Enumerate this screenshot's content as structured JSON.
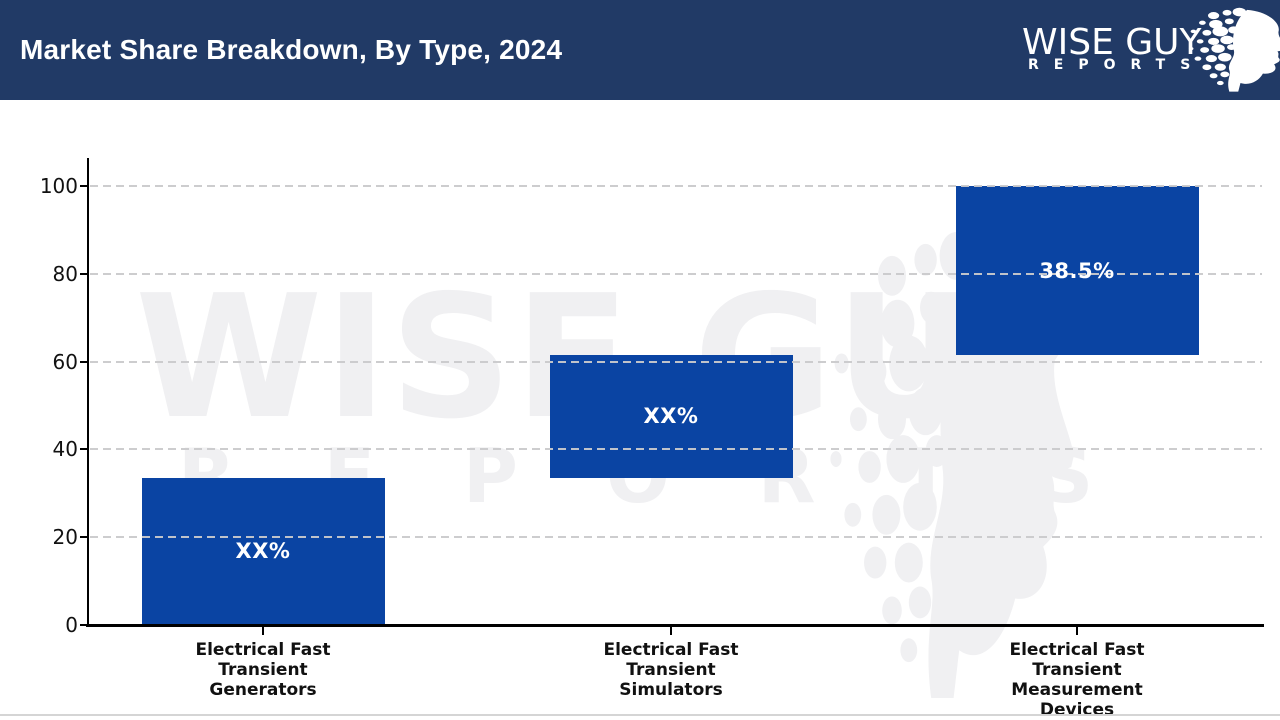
{
  "header": {
    "title": "Market Share Breakdown, By Type, 2024",
    "logo": {
      "wordmark": "WISE GUY",
      "subtext": "REPORTS"
    }
  },
  "watermark": {
    "wordmark": "WISE GUY",
    "subtext": "REPORTS"
  },
  "chart_data": {
    "type": "bar",
    "variant": "floating-segment-breakdown",
    "title": "Market Share Breakdown, By Type, 2024",
    "categories": [
      {
        "name": "Electrical Fast Transient Generators",
        "lines": [
          "Electrical Fast",
          "Transient",
          "Generators"
        ]
      },
      {
        "name": "Electrical Fast Transient Simulators",
        "lines": [
          "Electrical Fast",
          "Transient",
          "Simulators"
        ]
      },
      {
        "name": "Electrical Fast Transient Measurement Devices",
        "lines": [
          "Electrical Fast",
          "Transient",
          "Measurement",
          "Devices"
        ]
      }
    ],
    "segments": [
      {
        "category": "Electrical Fast Transient Generators",
        "start": 0,
        "end": 33.5,
        "label": "XX%"
      },
      {
        "category": "Electrical Fast Transient Simulators",
        "start": 33.5,
        "end": 61.5,
        "label": "XX%"
      },
      {
        "category": "Electrical Fast Transient Measurement Devices",
        "start": 61.5,
        "end": 100,
        "label": "38.5%"
      }
    ],
    "xlabel": "",
    "ylabel": "",
    "ylim": [
      0,
      100
    ],
    "yticks": [
      0,
      20,
      40,
      60,
      80,
      100
    ],
    "grid": {
      "horizontal": true,
      "style": "dashed",
      "drawn_over_bars": true
    },
    "legend": "none",
    "colors": {
      "bar": "#0a44a3",
      "bar_label_text": "#ffffff",
      "gridline": "#cccccc",
      "axis": "#000000",
      "header_bg": "#213a66",
      "header_text": "#ffffff",
      "watermark": "#f0f0f2"
    }
  }
}
